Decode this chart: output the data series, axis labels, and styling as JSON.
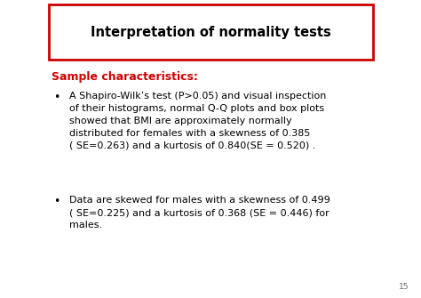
{
  "background_color": "#ffffff",
  "title_box_text": "Interpretation of normality tests",
  "title_box_color": "#cc0000",
  "title_text_color": "#000000",
  "section_label": "Sample characteristics:",
  "section_label_color": "#cc0000",
  "bullet1_lines": [
    "A Shapiro-Wilk’s test (P>0.05) and visual inspection",
    "of their histograms, normal Q-Q plots and box plots",
    "showed that BMI are approximately normally",
    "distributed for females with a skewness of 0.385",
    "( SE=0.263) and a kurtosis of 0.840(SE = 0.520) ."
  ],
  "bullet2_lines": [
    "Data are skewed for males with a skewness of 0.499",
    "( SE=0.225) and a kurtosis of 0.368 (SE = 0.446) for",
    "males."
  ],
  "page_number": "15",
  "body_text_color": "#000000",
  "body_fontsize": 8.0,
  "title_fontsize": 10.5
}
